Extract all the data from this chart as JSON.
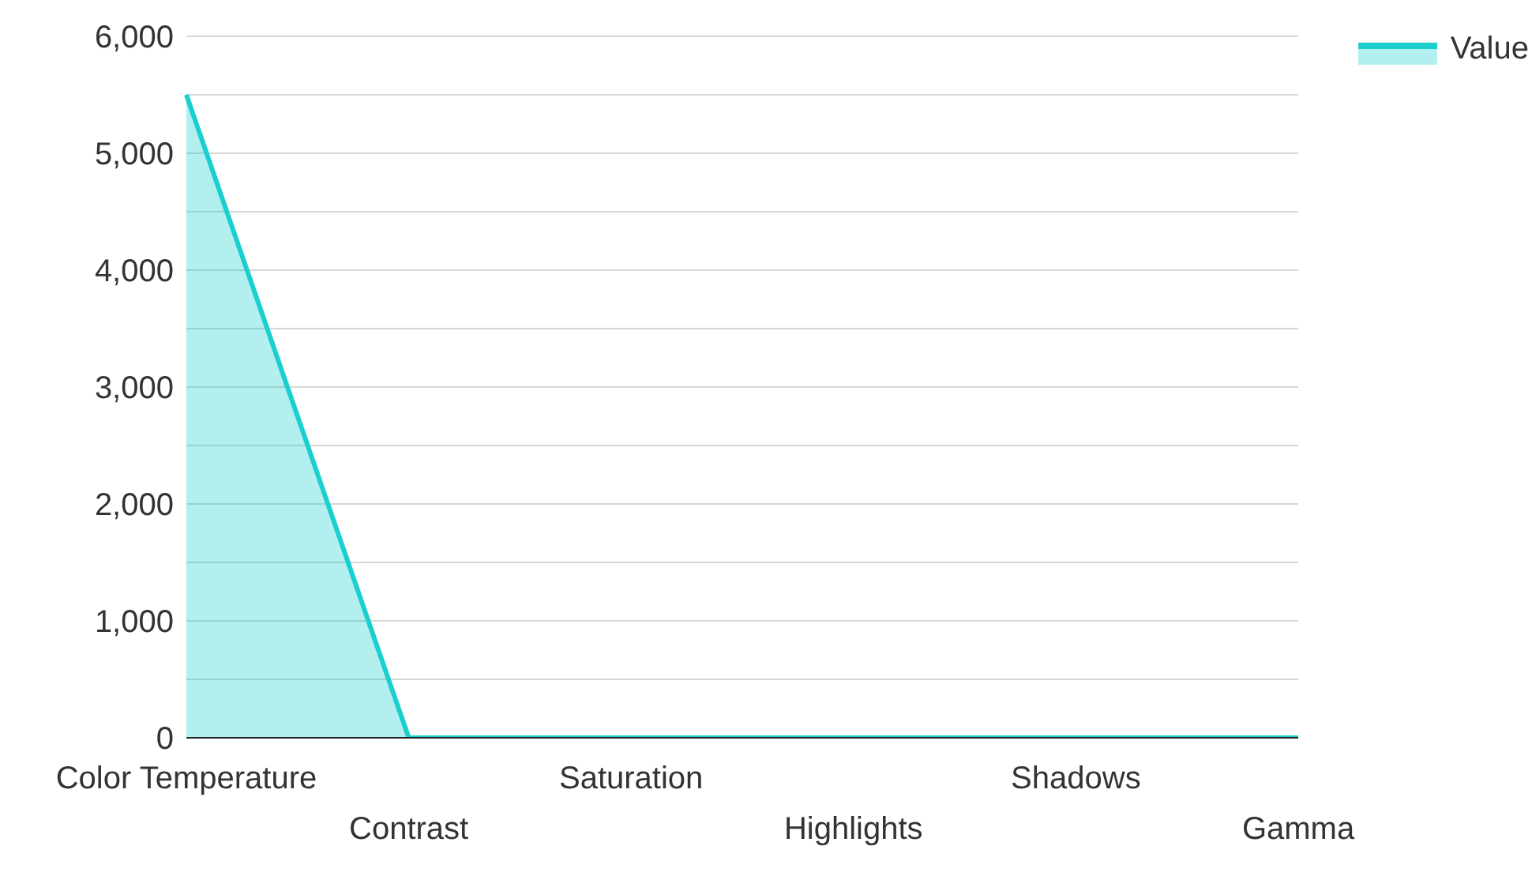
{
  "chart_data": {
    "type": "area",
    "categories": [
      "Color Temperature",
      "Contrast",
      "Saturation",
      "Highlights",
      "Shadows",
      "Gamma"
    ],
    "series": [
      {
        "name": "Value",
        "color": "#1ccfcf",
        "values": [
          5500,
          0,
          0,
          0,
          0,
          0
        ]
      }
    ],
    "ylim": [
      0,
      6000
    ],
    "yticks": [
      0,
      {
        "value": 500,
        "label": null
      },
      {
        "value": 1000,
        "label": "1,000"
      },
      {
        "value": 1500,
        "label": null
      },
      {
        "value": 2000,
        "label": "2,000"
      },
      {
        "value": 2500,
        "label": null
      },
      {
        "value": 3000,
        "label": "3,000"
      },
      {
        "value": 3500,
        "label": null
      },
      {
        "value": 4000,
        "label": "4,000"
      },
      {
        "value": 4500,
        "label": null
      },
      {
        "value": 5000,
        "label": "5,000"
      },
      {
        "value": 5500,
        "label": null
      },
      {
        "value": 6000,
        "label": "6,000"
      }
    ],
    "grid": "y",
    "legend": "top right"
  }
}
